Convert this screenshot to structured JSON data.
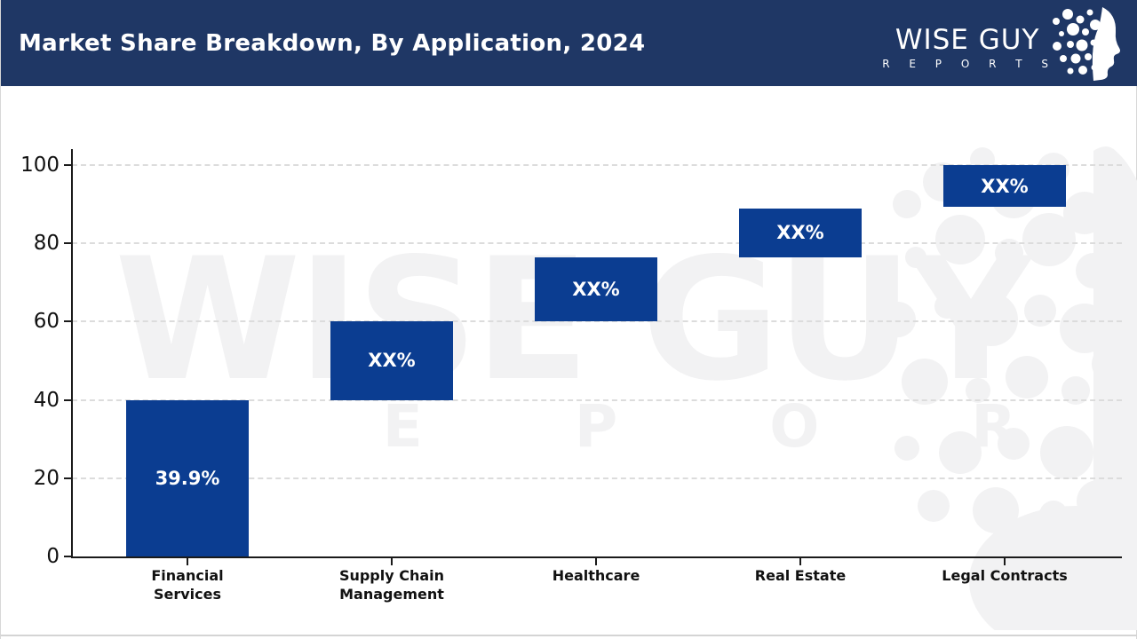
{
  "header": {
    "title": "Market Share Breakdown, By Application, 2024",
    "logo": {
      "brand_top": "WISE GUY",
      "brand_bottom": "R E P O R T S"
    }
  },
  "watermark": {
    "line1": "WISE GUY",
    "line2": "R E P O R T S"
  },
  "colors": {
    "header_bg": "#1f3765",
    "bar": "#0b3d91",
    "bar_label": "#ffffff",
    "grid": "#dcdcdc",
    "axis": "#1a1a1a",
    "watermark": "#f2f2f3",
    "page_bg": "#ffffff"
  },
  "chart_data": {
    "type": "bar",
    "subtype": "waterfall",
    "title": "Market Share Breakdown, By Application, 2024",
    "categories": [
      "Financial Services",
      "Supply Chain Management",
      "Healthcare",
      "Real Estate",
      "Legal Contracts"
    ],
    "segments": [
      {
        "category": "Financial Services",
        "start": 0,
        "end": 39.9,
        "label": "39.9%"
      },
      {
        "category": "Supply Chain Management",
        "start": 39.9,
        "end": 60.2,
        "label": "XX%"
      },
      {
        "category": "Healthcare",
        "start": 60.2,
        "end": 76.4,
        "label": "XX%"
      },
      {
        "category": "Real Estate",
        "start": 76.5,
        "end": 89.0,
        "label": "XX%"
      },
      {
        "category": "Legal Contracts",
        "start": 89.3,
        "end": 100,
        "label": "XX%"
      }
    ],
    "xlabel": "",
    "ylabel": "",
    "yticks": [
      0,
      20,
      40,
      60,
      80,
      100
    ],
    "ylim": [
      0,
      105
    ],
    "grid": "horizontal-dashed",
    "legend": "none",
    "bar_color": "#0b3d91",
    "value_label_color": "#ffffff"
  }
}
